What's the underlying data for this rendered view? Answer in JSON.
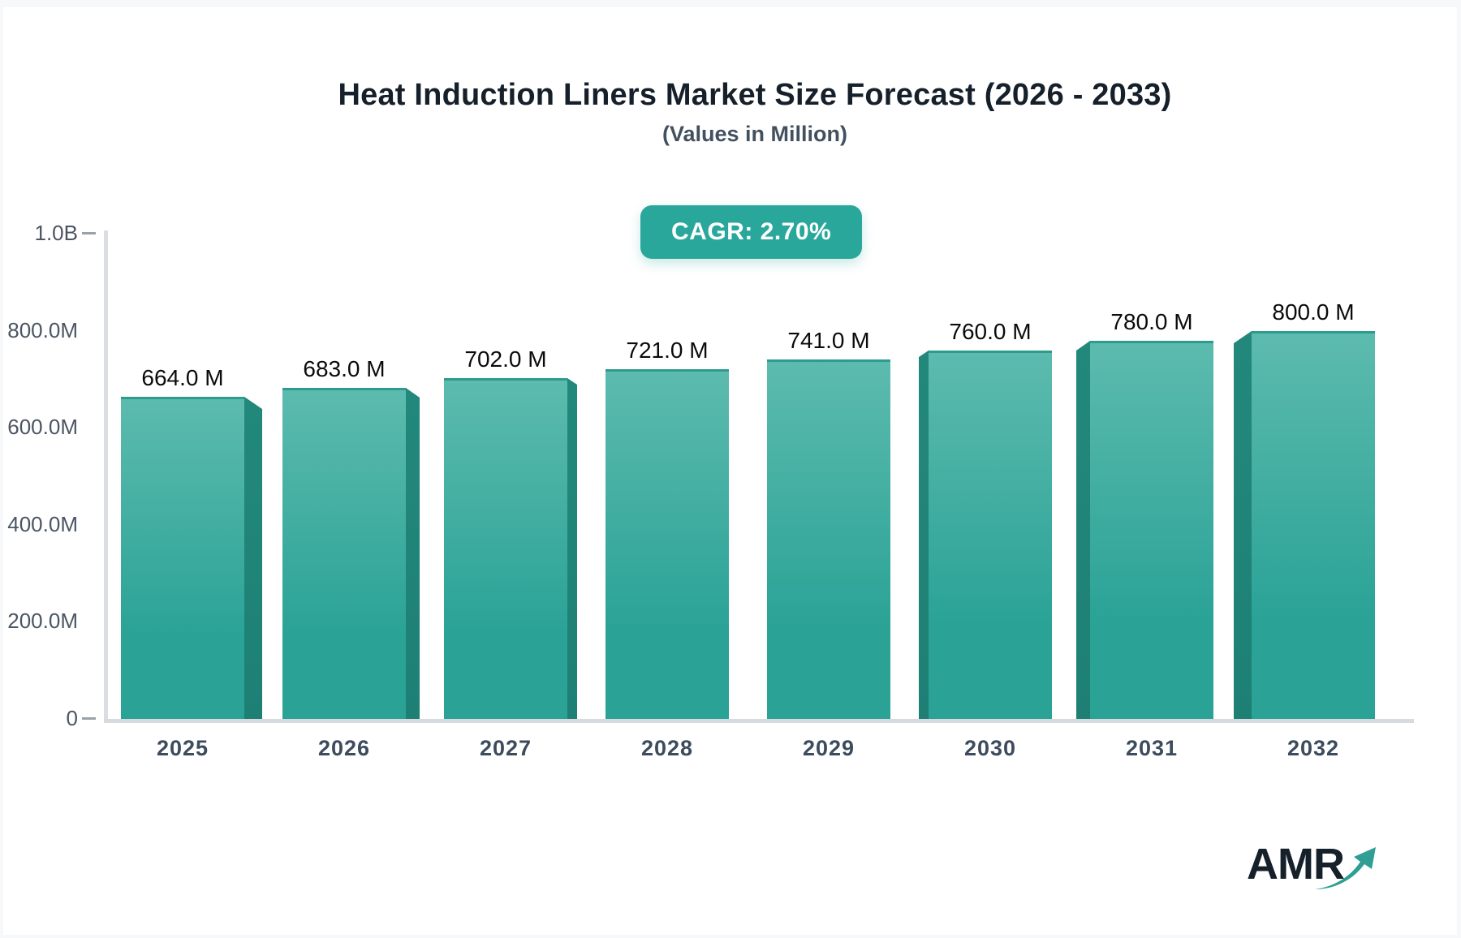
{
  "header": {
    "note": ""
  },
  "chart_data": {
    "type": "bar",
    "title": "Heat Induction Liners Market Size Forecast (2026 - 2033)",
    "subtitle": "(Values in Million)",
    "cagr_label": "CAGR: 2.70%",
    "cagr_value": "2.70%",
    "categories": [
      "2025",
      "2026",
      "2027",
      "2028",
      "2029",
      "2030",
      "2031",
      "2032"
    ],
    "values": [
      664.0,
      683.0,
      702.0,
      721.0,
      741.0,
      760.0,
      780.0,
      800.0
    ],
    "bar_labels": [
      "664.0 M",
      "683.0 M",
      "702.0 M",
      "721.0 M",
      "741.0 M",
      "760.0 M",
      "780.0 M",
      "800.0 M"
    ],
    "y_ticks": [
      "1.0B",
      "800.0M",
      "600.0M",
      "400.0M",
      "200.0M",
      "0"
    ],
    "ylim_millions": [
      0,
      1000
    ],
    "grid": "off",
    "legend": "none",
    "colors": {
      "accent_teal": "#2aa79b",
      "bar_gradient_top": "#5cbbae",
      "bar_gradient_bottom": "#2aa296",
      "bar_top_edge": "#2d9b8e",
      "bar_side_dark": "#1e8075",
      "axis_gray": "#d7dade",
      "tick_text": "#4b5563",
      "category_text": "#3c4b5d",
      "title_text": "#16202b"
    }
  },
  "logo": {
    "text": "AMR"
  }
}
